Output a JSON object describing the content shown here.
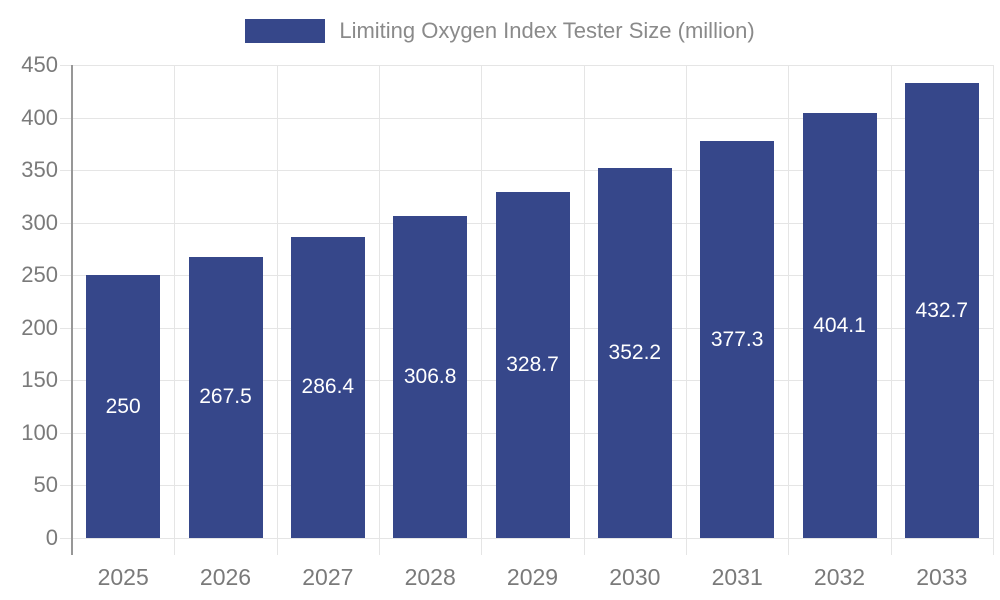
{
  "chart_data": {
    "type": "bar",
    "title": "Limiting Oxygen Index Tester Size (million)",
    "categories": [
      "2025",
      "2026",
      "2027",
      "2028",
      "2029",
      "2030",
      "2031",
      "2032",
      "2033"
    ],
    "values": [
      250,
      267.5,
      286.4,
      306.8,
      328.7,
      352.2,
      377.3,
      404.1,
      432.7
    ],
    "value_labels": [
      "250",
      "267.5",
      "286.4",
      "306.8",
      "328.7",
      "352.2",
      "377.3",
      "404.1",
      "432.7"
    ],
    "xlabel": "",
    "ylabel": "",
    "ylim": [
      0,
      450
    ],
    "ytick_step": 50,
    "ytick_labels": [
      "0",
      "50",
      "100",
      "150",
      "200",
      "250",
      "300",
      "350",
      "400",
      "450"
    ],
    "grid": "on",
    "legend_position": "top-center",
    "colors": {
      "bar_fill": "#36478a",
      "gridline": "#e5e5e5",
      "axis_line": "#979797",
      "tick_label": "#7a7a7a",
      "legend_text": "#8a8a8a",
      "value_label": "#ffffff",
      "background": "#ffffff"
    }
  }
}
